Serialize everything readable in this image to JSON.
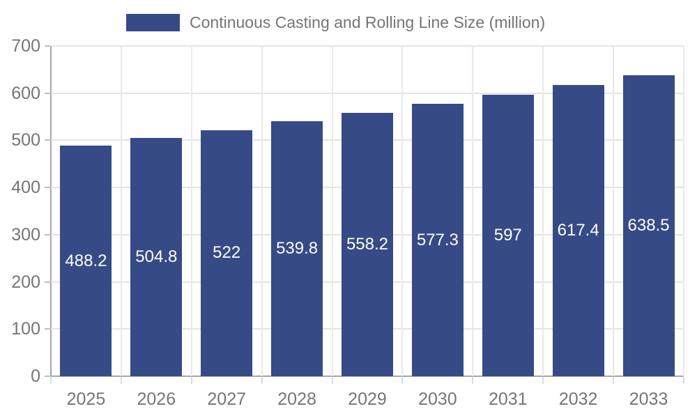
{
  "chart_data": {
    "type": "bar",
    "title": "Continuous Casting and Rolling Line Size (million)",
    "categories": [
      "2025",
      "2026",
      "2027",
      "2028",
      "2029",
      "2030",
      "2031",
      "2032",
      "2033"
    ],
    "values": [
      488.2,
      504.8,
      522,
      539.8,
      558.2,
      577.3,
      597,
      617.4,
      638.5
    ],
    "value_labels": [
      "488.2",
      "504.8",
      "522",
      "539.8",
      "558.2",
      "577.3",
      "597",
      "617.4",
      "638.5"
    ],
    "xlabel": "",
    "ylabel": "",
    "ylim": [
      0,
      700
    ],
    "ytick_step": 100,
    "ytick_labels": [
      "0",
      "100",
      "200",
      "300",
      "400",
      "500",
      "600",
      "700"
    ],
    "grid": true,
    "legend_position": "top",
    "colors": {
      "bar": "#364A86",
      "bar_value_text": "#ffffff",
      "axis_text": "#757575",
      "legend_text": "#757575",
      "axis_line": "#a6a6a6",
      "gridline": "#e4e4e4"
    }
  }
}
